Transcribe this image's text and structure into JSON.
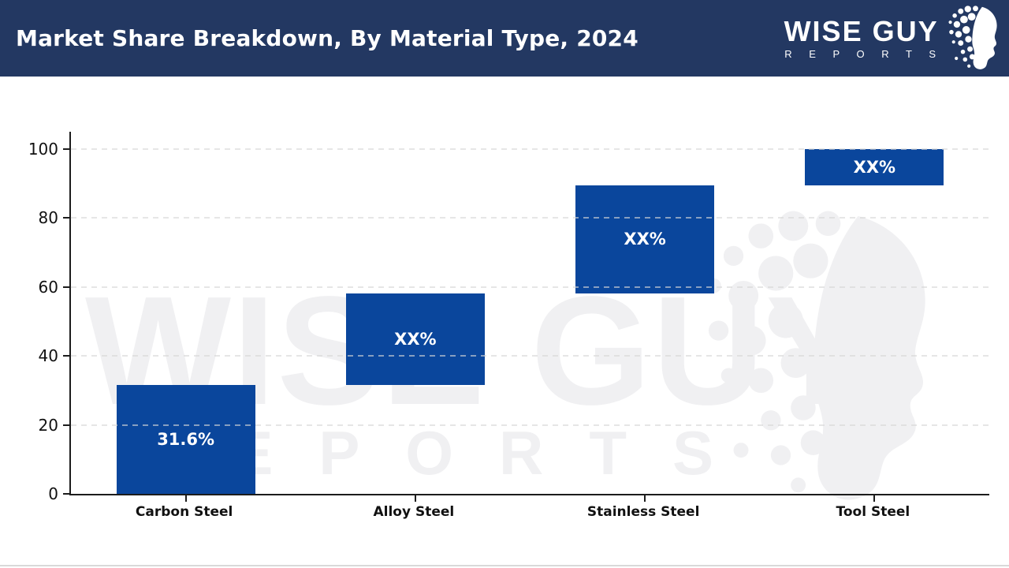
{
  "header": {
    "title": "Market Share Breakdown, By Material Type, 2024",
    "logo": {
      "name": "WISE GUY",
      "subtitle": "R E P O R T S"
    }
  },
  "watermark": {
    "line1": "WISE GUY",
    "line2": "REPORTS"
  },
  "colors": {
    "header_bg": "#233862",
    "bar": "#0a469c",
    "bar_label": "#ffffff",
    "axis": "#1c1c1c",
    "gridline": "#d9d9d9",
    "watermark": "#f0f0f2",
    "title_text": "#ffffff"
  },
  "chart_data": {
    "type": "bar",
    "subtype": "waterfall",
    "title": "Market Share Breakdown, By Material Type, 2024",
    "categories": [
      "Carbon Steel",
      "Alloy Steel",
      "Stainless Steel",
      "Tool Steel"
    ],
    "segments": [
      {
        "category": "Carbon Steel",
        "start": 0,
        "end": 31.6,
        "label": "31.6%"
      },
      {
        "category": "Alloy Steel",
        "start": 31.6,
        "end": 58,
        "label": "XX%"
      },
      {
        "category": "Stainless Steel",
        "start": 58,
        "end": 89.5,
        "label": "XX%"
      },
      {
        "category": "Tool Steel",
        "start": 89.5,
        "end": 100,
        "label": "XX%"
      }
    ],
    "xlabel": "",
    "ylabel": "",
    "ylim": [
      0,
      100
    ],
    "yticks": [
      0,
      20,
      40,
      60,
      80,
      100
    ],
    "grid": "horizontal dashed, drawn over bars",
    "legend": "none"
  }
}
